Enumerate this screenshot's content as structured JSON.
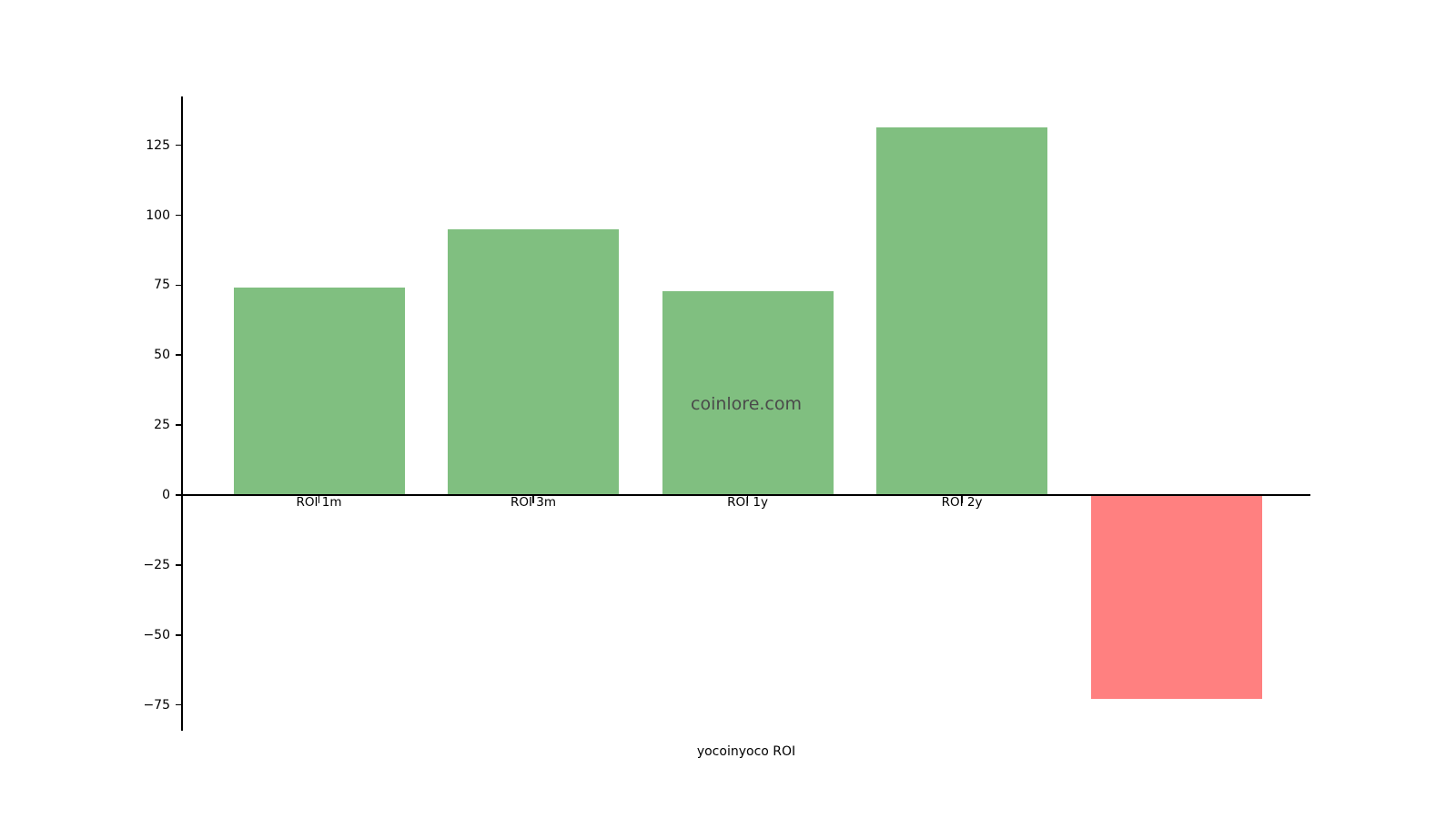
{
  "page": {
    "background_color": "#ffffff",
    "text_color": "#000000"
  },
  "watermark": {
    "text": "coinlore.com",
    "color": "#4a4a4a"
  },
  "chart_data": {
    "type": "bar",
    "title": "",
    "xlabel": "yocoinyoco ROI",
    "ylabel": "",
    "categories": [
      "ROI 1m",
      "ROI 3m",
      "ROI 1y",
      "ROI 2y",
      ""
    ],
    "values": [
      74,
      95,
      73,
      131.5,
      -73
    ],
    "series": [
      {
        "name": "yocoinyoco ROI",
        "values": [
          74,
          95,
          73,
          131.5,
          -73
        ]
      }
    ],
    "positive_color": "#80bf80",
    "negative_color": "#ff8080",
    "axis_color": "#000000",
    "y_ticks": [
      -75,
      -50,
      -25,
      0,
      25,
      50,
      75,
      100,
      125
    ],
    "y_tick_labels": [
      "−75",
      "−50",
      "−25",
      "0",
      "25",
      "50",
      "75",
      "100",
      "125"
    ],
    "ylim": [
      -84.2,
      142.4
    ],
    "xlim": [
      -0.64,
      4.64
    ],
    "grid": false,
    "legend": null,
    "notes": "fifth bar has no x tick and no label; bottom spine drawn at y=0"
  }
}
